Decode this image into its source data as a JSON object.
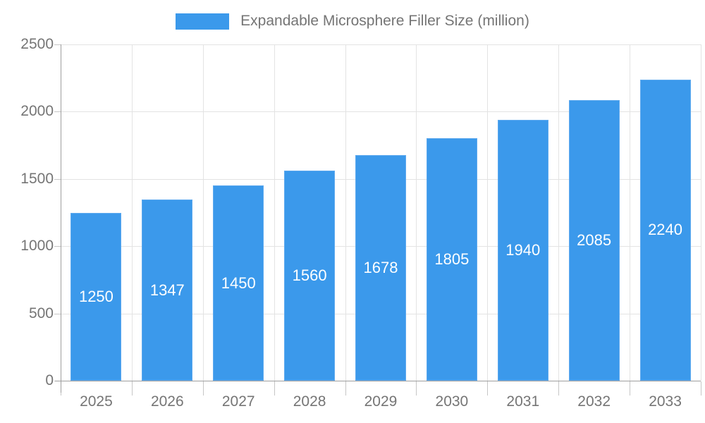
{
  "legend": {
    "label": "Expandable Microsphere Filler Size (million)"
  },
  "colors": {
    "bar": "#3b99eb",
    "bar_border": "#5faaef",
    "axis_text": "#757575",
    "gridline": "#e3e3e3",
    "axis_line": "#9e9e9e",
    "value_label": "#ffffff"
  },
  "chart_data": {
    "type": "bar",
    "title": "Expandable Microsphere Filler Size (million)",
    "categories": [
      "2025",
      "2026",
      "2027",
      "2028",
      "2029",
      "2030",
      "2031",
      "2032",
      "2033"
    ],
    "values": [
      1250,
      1347,
      1450,
      1560,
      1678,
      1805,
      1940,
      2085,
      2240
    ],
    "value_labels": [
      "1250",
      "1347",
      "1450",
      "1560",
      "1678",
      "1805",
      "1940",
      "2085",
      "2240"
    ],
    "xlabel": "",
    "ylabel": "",
    "ylim": [
      0,
      2500
    ],
    "yticks": [
      0,
      500,
      1000,
      1500,
      2000,
      2500
    ],
    "grid": true,
    "legend_position": "top-center",
    "value_label_position": "inside-center"
  }
}
